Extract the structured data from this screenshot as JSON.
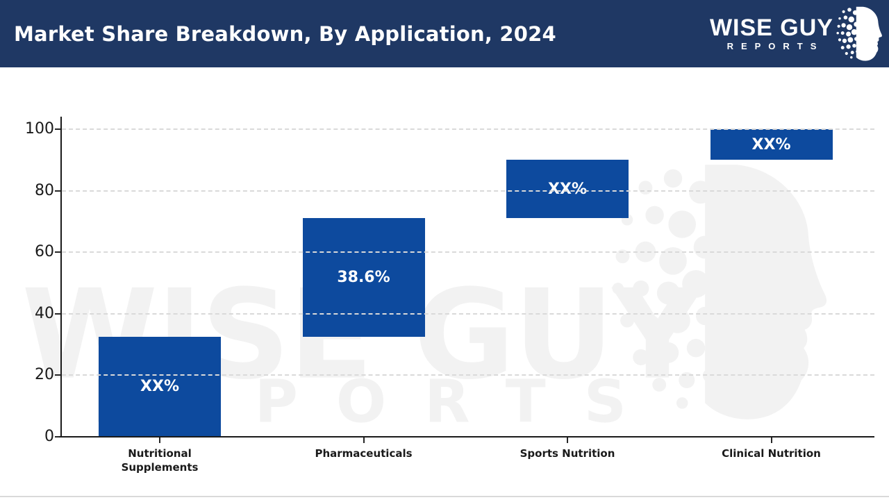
{
  "header": {
    "title": "Market Share Breakdown, By Application, 2024",
    "background": "#1f3864",
    "logo": {
      "line1": "WISE GUY",
      "line2": "REPORTS"
    }
  },
  "watermark": {
    "line1": "WISE GUY",
    "line2": "REPORTS"
  },
  "chart_data": {
    "type": "bar",
    "subtype": "stacked-waterfall",
    "title": "Market Share Breakdown, By Application, 2024",
    "categories": [
      "Nutritional Supplements",
      "Pharmaceuticals",
      "Sports Nutrition",
      "Clinical Nutrition"
    ],
    "values": [
      32.4,
      38.6,
      19.0,
      10.0
    ],
    "starts": [
      0,
      32.4,
      71.0,
      90.0
    ],
    "bar_labels": [
      "XX%",
      "38.6%",
      "XX%",
      "XX%"
    ],
    "xlabel": "",
    "ylabel": "",
    "yticks": [
      0,
      20,
      40,
      60,
      80,
      100
    ],
    "ylim": [
      0,
      104
    ],
    "grid": "horizontal-dashed",
    "legend": "none",
    "bar_color": "#0d4a9e",
    "bar_label_color": "#ffffff",
    "axis_color": "#1a1a1a",
    "gridline_color": "#d9d9d9"
  }
}
